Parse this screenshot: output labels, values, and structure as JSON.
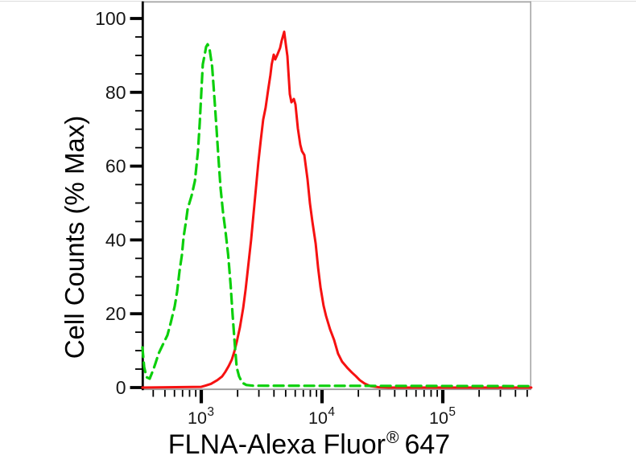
{
  "colors": {
    "red_curve": "#f61111",
    "green_curve": "#0ccf0c",
    "axis": "#000000",
    "frame_gray": "#a6a6a6",
    "tick_label": "#161616"
  },
  "chart_data": {
    "type": "line",
    "subtype": "flow-cytometry-histogram",
    "grid": false,
    "legend": null,
    "x_axis": {
      "label": "FLNA-Alexa Fluor® 647",
      "label_parts": {
        "pre": "FLNA-Alexa Fluor",
        "sup": "®",
        "post": "647"
      },
      "scale": "log10",
      "base": "10",
      "range_log10": [
        2.513,
        5.733
      ],
      "major_ticks": [
        1000,
        10000,
        100000
      ],
      "major_tick_exponents": [
        3,
        4,
        5
      ],
      "minor_ticks": [
        400,
        500,
        600,
        700,
        800,
        900,
        2000,
        3000,
        4000,
        5000,
        6000,
        7000,
        8000,
        9000,
        20000,
        30000,
        40000,
        50000,
        60000,
        70000,
        80000,
        90000,
        200000,
        300000,
        400000,
        500000
      ]
    },
    "y_axis": {
      "label": "Cell Counts (% Max)",
      "range": [
        0,
        104.7
      ],
      "major_ticks": [
        0,
        20,
        40,
        60,
        80,
        100
      ],
      "minor_tick_step": 5
    },
    "series": [
      {
        "name": "red-solid-curve",
        "style": "solid",
        "color": "#f61111",
        "stroke_width": 3,
        "dash": null,
        "peak": {
          "x_log10": 3.687,
          "y_pct": 96.4
        },
        "points": [
          [
            2.513,
            0
          ],
          [
            3.0,
            0.2
          ],
          [
            3.033,
            0.5
          ],
          [
            3.08,
            1
          ],
          [
            3.133,
            2
          ],
          [
            3.173,
            3
          ],
          [
            3.2,
            4.3
          ],
          [
            3.227,
            5.8
          ],
          [
            3.253,
            7.6
          ],
          [
            3.273,
            9.7
          ],
          [
            3.293,
            12.3
          ],
          [
            3.32,
            16.3
          ],
          [
            3.347,
            21.6
          ],
          [
            3.367,
            26.6
          ],
          [
            3.387,
            32.5
          ],
          [
            3.413,
            40
          ],
          [
            3.433,
            47
          ],
          [
            3.453,
            54
          ],
          [
            3.473,
            61
          ],
          [
            3.493,
            67
          ],
          [
            3.513,
            72.6
          ],
          [
            3.533,
            75.8
          ],
          [
            3.553,
            80.4
          ],
          [
            3.573,
            84.7
          ],
          [
            3.583,
            87.6
          ],
          [
            3.6,
            90.2
          ],
          [
            3.613,
            88.9
          ],
          [
            3.633,
            90.4
          ],
          [
            3.653,
            92
          ],
          [
            3.667,
            94.1
          ],
          [
            3.687,
            96.4
          ],
          [
            3.7,
            93
          ],
          [
            3.713,
            89.8
          ],
          [
            3.733,
            79.5
          ],
          [
            3.747,
            77.3
          ],
          [
            3.767,
            78.2
          ],
          [
            3.78,
            76.7
          ],
          [
            3.8,
            70.2
          ],
          [
            3.82,
            65.8
          ],
          [
            3.833,
            64.1
          ],
          [
            3.853,
            63
          ],
          [
            3.88,
            56.4
          ],
          [
            3.9,
            49.9
          ],
          [
            3.92,
            45
          ],
          [
            3.947,
            39
          ],
          [
            3.967,
            32.5
          ],
          [
            3.987,
            27.2
          ],
          [
            4.013,
            22.2
          ],
          [
            4.033,
            19.4
          ],
          [
            4.067,
            15.7
          ],
          [
            4.1,
            12.9
          ],
          [
            4.133,
            9.2
          ],
          [
            4.167,
            7
          ],
          [
            4.213,
            5.2
          ],
          [
            4.247,
            4.1
          ],
          [
            4.28,
            3.1
          ],
          [
            4.313,
            2
          ],
          [
            4.353,
            1.1
          ],
          [
            4.4,
            0.4
          ],
          [
            4.467,
            0.1
          ],
          [
            4.55,
            0
          ],
          [
            5.733,
            0
          ]
        ]
      },
      {
        "name": "green-dashed-curve",
        "style": "dashed",
        "color": "#0ccf0c",
        "stroke_width": 3.2,
        "dash": "12 7",
        "peak": {
          "x_log10": 3.053,
          "y_pct": 93
        },
        "points": [
          [
            2.513,
            10.9
          ],
          [
            2.527,
            5.5
          ],
          [
            2.547,
            2.8
          ],
          [
            2.573,
            2.4
          ],
          [
            2.6,
            4.6
          ],
          [
            2.62,
            6.5
          ],
          [
            2.647,
            9.2
          ],
          [
            2.68,
            11.5
          ],
          [
            2.72,
            14.2
          ],
          [
            2.747,
            17.5
          ],
          [
            2.78,
            22
          ],
          [
            2.8,
            26
          ],
          [
            2.82,
            31.6
          ],
          [
            2.84,
            36
          ],
          [
            2.853,
            40.7
          ],
          [
            2.873,
            45
          ],
          [
            2.887,
            48.4
          ],
          [
            2.92,
            52
          ],
          [
            2.947,
            56
          ],
          [
            2.96,
            60
          ],
          [
            2.973,
            64
          ],
          [
            2.987,
            71.7
          ],
          [
            3.0,
            79.7
          ],
          [
            3.013,
            87.6
          ],
          [
            3.027,
            90
          ],
          [
            3.04,
            92.3
          ],
          [
            3.053,
            93
          ],
          [
            3.067,
            92
          ],
          [
            3.09,
            87
          ],
          [
            3.11,
            78
          ],
          [
            3.127,
            70
          ],
          [
            3.143,
            62
          ],
          [
            3.16,
            54
          ],
          [
            3.18,
            47.5
          ],
          [
            3.2,
            42.5
          ],
          [
            3.223,
            36
          ],
          [
            3.243,
            28
          ],
          [
            3.26,
            19.5
          ],
          [
            3.277,
            11.8
          ],
          [
            3.293,
            5.5
          ],
          [
            3.313,
            3
          ],
          [
            3.34,
            1.3
          ],
          [
            3.373,
            0.7
          ],
          [
            3.43,
            0.5
          ],
          [
            5.733,
            0.4
          ]
        ]
      }
    ]
  }
}
